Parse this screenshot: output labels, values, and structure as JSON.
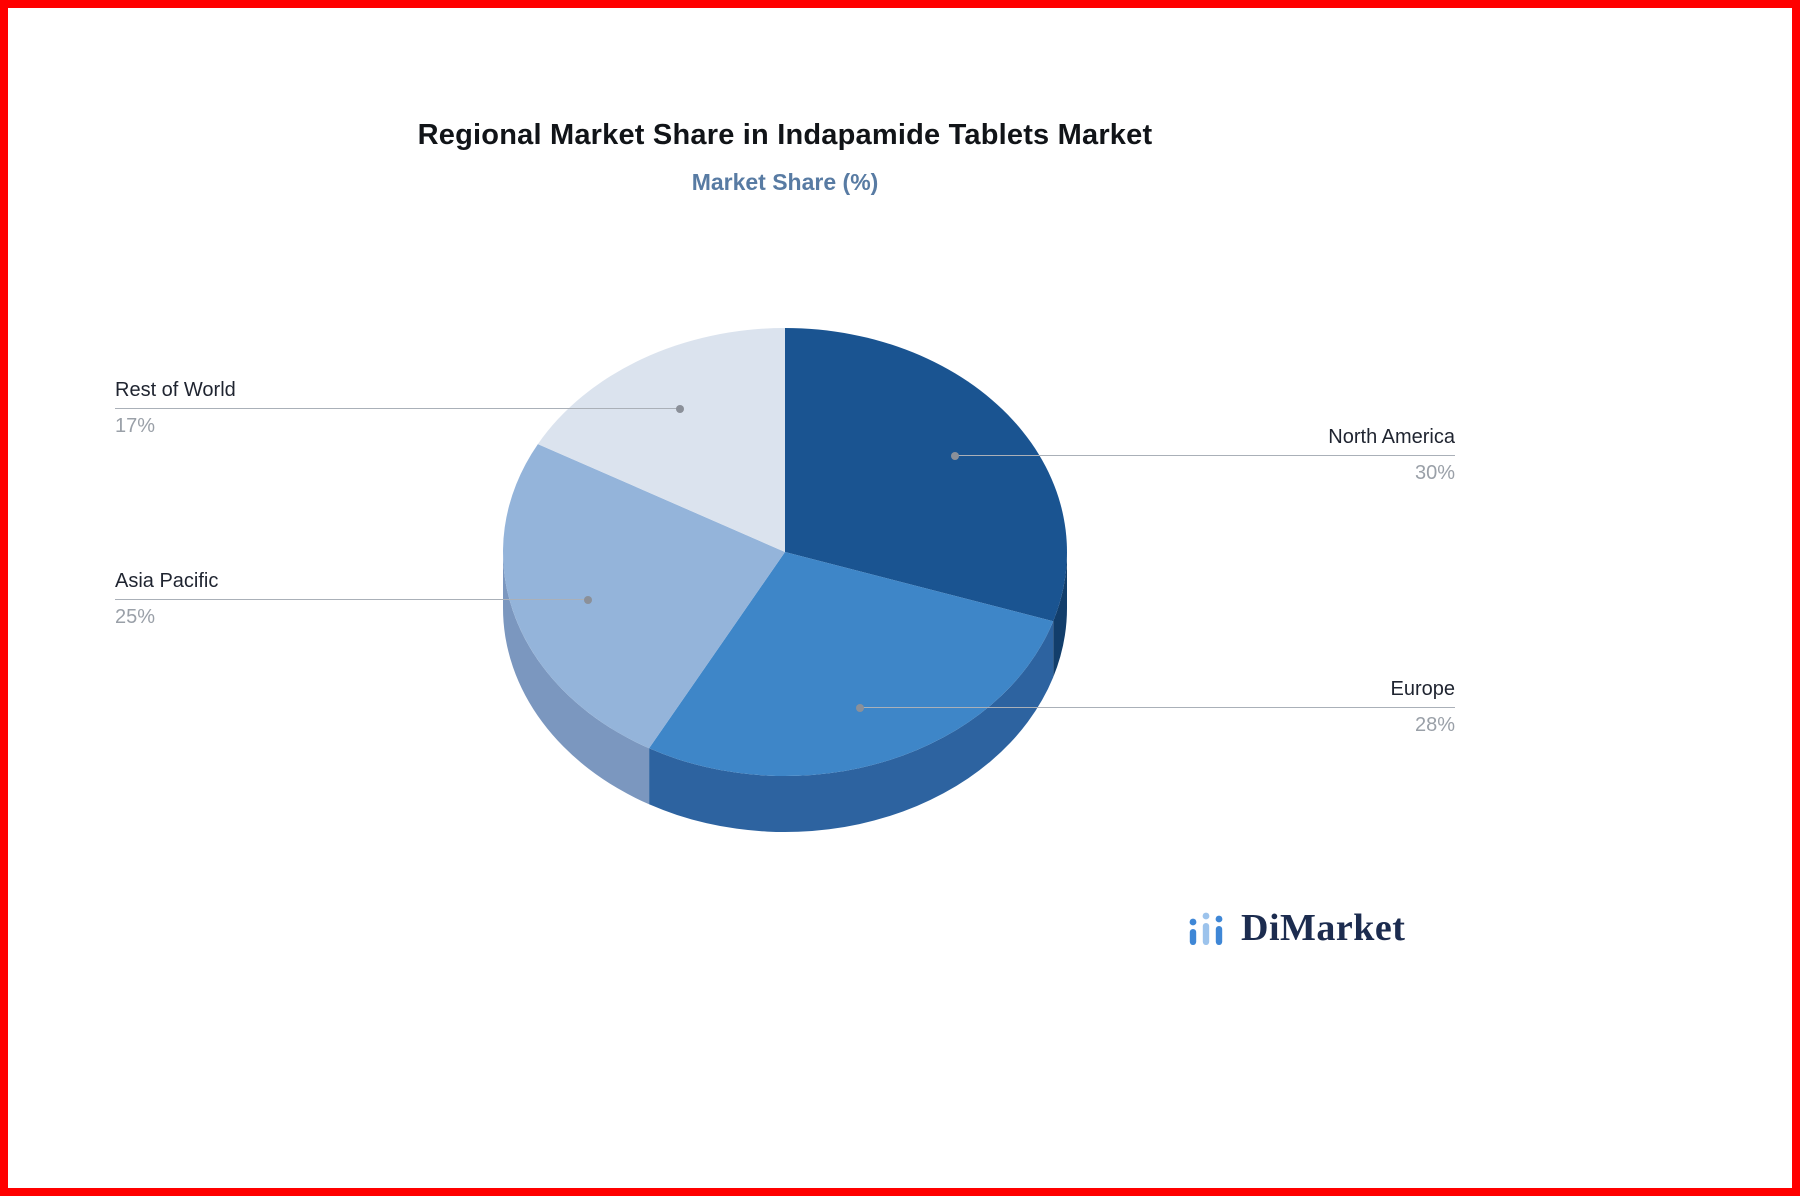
{
  "page": {
    "border_color": "#ff0000",
    "background": "#ffffff"
  },
  "header": {
    "title": "Regional Market Share in Indapamide Tablets Market",
    "subtitle": "Market Share (%)"
  },
  "brand": {
    "name": "DiMarket",
    "icon": "bar-chart-icon",
    "icon_color": "#3f87d6",
    "text_color": "#1c2c4f"
  },
  "chart_data": {
    "type": "pie",
    "title": "Regional Market Share in Indapamide Tablets Market",
    "subtitle": "Market Share (%)",
    "unit": "%",
    "effect": "3d",
    "start_angle_deg": 0,
    "direction": "clockwise",
    "legend": "none",
    "slices": [
      {
        "label": "North America",
        "value": 30,
        "pct_label": "30%",
        "color": "#1a5491",
        "side_color": "#123e6b"
      },
      {
        "label": "Europe",
        "value": 28,
        "pct_label": "28%",
        "color": "#3e86c8",
        "side_color": "#2d63a0"
      },
      {
        "label": "Asia Pacific",
        "value": 25,
        "pct_label": "25%",
        "color": "#94b4da",
        "side_color": "#7b97bf"
      },
      {
        "label": "Rest of World",
        "value": 17,
        "pct_label": "17%",
        "color": "#dbe3ee",
        "side_color": "#b9c4d6"
      }
    ],
    "label_style": {
      "name_color": "#1f2430",
      "pct_color": "#9aa0a8",
      "line_color": "#aab0b8"
    }
  }
}
